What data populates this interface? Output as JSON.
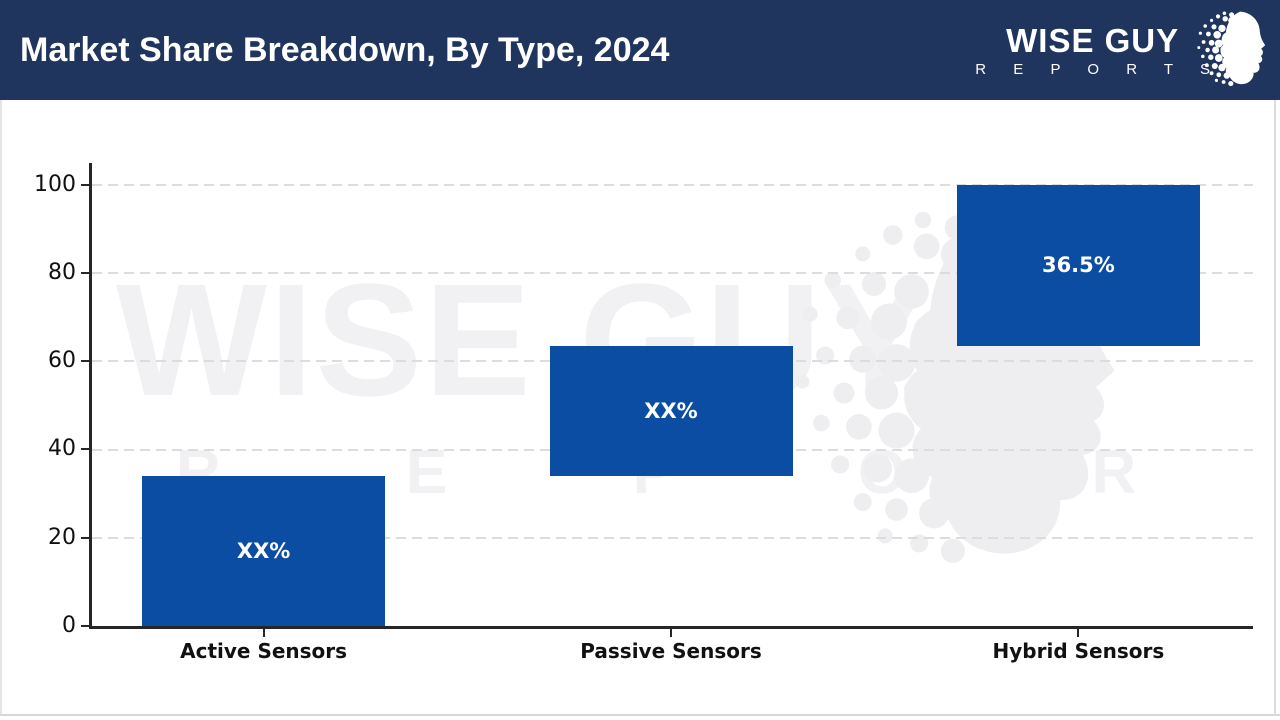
{
  "header": {
    "title": "Market Share Breakdown, By Type, 2024",
    "bg_color": "#20355e",
    "logo": {
      "line1": "WISE GUY",
      "line2": "R E P O R T S"
    }
  },
  "watermark": {
    "line1": "WISE GUY",
    "line2": "R E P O R T S"
  },
  "chart_data": {
    "type": "bar",
    "subtype": "waterfall",
    "title": "Market Share Breakdown, By Type, 2024",
    "categories": [
      "Active Sensors",
      "Passive Sensors",
      "Hybrid Sensors"
    ],
    "values": [
      34,
      29.5,
      36.5
    ],
    "bars": [
      {
        "category": "Active Sensors",
        "start": 0,
        "end": 34,
        "label": "XX%"
      },
      {
        "category": "Passive Sensors",
        "start": 34,
        "end": 63.5,
        "label": "XX%"
      },
      {
        "category": "Hybrid Sensors",
        "start": 63.5,
        "end": 100,
        "label": "36.5%"
      }
    ],
    "xlabel": "",
    "ylabel": "",
    "ylim": [
      0,
      105.6
    ],
    "yticks": [
      0,
      20,
      40,
      60,
      80,
      100
    ],
    "grid": "horizontal dashed",
    "legend": "none",
    "bar_color": "#0b4da2",
    "bar_label_color": "#ffffff",
    "axis_color": "#262626",
    "gridline_color": "#dcdcdc"
  }
}
